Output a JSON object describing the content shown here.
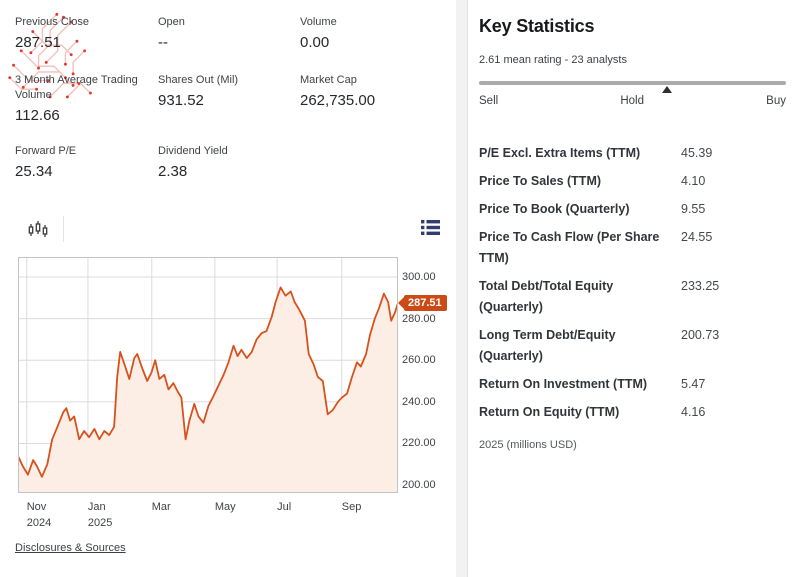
{
  "quote_stats": {
    "items": [
      {
        "label": "Previous Close",
        "value": "287.51"
      },
      {
        "label": "Open",
        "value": "--"
      },
      {
        "label": "Volume",
        "value": "0.00"
      },
      {
        "label": "3 Month Average Trading Volume",
        "value": "112.66"
      },
      {
        "label": "Shares Out (Mil)",
        "value": "931.52"
      },
      {
        "label": "Market Cap",
        "value": "262,735.00"
      },
      {
        "label": "Forward P/E",
        "value": "25.34"
      },
      {
        "label": "Dividend Yield",
        "value": "2.38"
      }
    ]
  },
  "toolbar": {
    "icons": [
      "candlestick-chart-icon",
      "legend-icon"
    ],
    "icon_color_candle": "#3a3a3a",
    "icon_color_legend": "#303d6e"
  },
  "chart_data": {
    "type": "area",
    "title": "Price chart Nov 2024 - Oct 2025",
    "line_color": "#d8501c",
    "fill_color": "#fdeee5",
    "grid_color": "#dcdcdc",
    "border_color": "#c4c4c4",
    "tag_color": "#cc4a15",
    "last_price": 287.51,
    "last_price_label": "287.51",
    "ylim": [
      196.2,
      309.6
    ],
    "y_ticks": [
      {
        "value": 300,
        "label": "300.00"
      },
      {
        "value": 280,
        "label": "280.00"
      },
      {
        "value": 260,
        "label": "260.00"
      },
      {
        "value": 240,
        "label": "240.00"
      },
      {
        "value": 220,
        "label": "220.00"
      },
      {
        "value": 200,
        "label": "200.00"
      }
    ],
    "x_ticks": [
      {
        "f": 0.023,
        "label": "Nov",
        "sub": "2024"
      },
      {
        "f": 0.184,
        "label": "Jan",
        "sub": "2025"
      },
      {
        "f": 0.352,
        "label": "Mar",
        "sub": ""
      },
      {
        "f": 0.518,
        "label": "May",
        "sub": ""
      },
      {
        "f": 0.682,
        "label": "Jul",
        "sub": ""
      },
      {
        "f": 0.852,
        "label": "Sep",
        "sub": ""
      }
    ],
    "points": [
      [
        0.0,
        214
      ],
      [
        0.013,
        209
      ],
      [
        0.026,
        205
      ],
      [
        0.04,
        212
      ],
      [
        0.05,
        209
      ],
      [
        0.063,
        204
      ],
      [
        0.077,
        210
      ],
      [
        0.09,
        222
      ],
      [
        0.106,
        229
      ],
      [
        0.119,
        235
      ],
      [
        0.127,
        237
      ],
      [
        0.137,
        231
      ],
      [
        0.148,
        233
      ],
      [
        0.161,
        222
      ],
      [
        0.174,
        226
      ],
      [
        0.187,
        223
      ],
      [
        0.201,
        227
      ],
      [
        0.214,
        222
      ],
      [
        0.227,
        226
      ],
      [
        0.24,
        224
      ],
      [
        0.253,
        228
      ],
      [
        0.261,
        252
      ],
      [
        0.269,
        264
      ],
      [
        0.282,
        257
      ],
      [
        0.293,
        251
      ],
      [
        0.306,
        261
      ],
      [
        0.314,
        263
      ],
      [
        0.327,
        256
      ],
      [
        0.34,
        250
      ],
      [
        0.351,
        254
      ],
      [
        0.361,
        260
      ],
      [
        0.372,
        251
      ],
      [
        0.385,
        253
      ],
      [
        0.396,
        246
      ],
      [
        0.409,
        249
      ],
      [
        0.42,
        245
      ],
      [
        0.43,
        242
      ],
      [
        0.441,
        222
      ],
      [
        0.451,
        231
      ],
      [
        0.464,
        239
      ],
      [
        0.475,
        233
      ],
      [
        0.488,
        230
      ],
      [
        0.501,
        238
      ],
      [
        0.515,
        243
      ],
      [
        0.528,
        248
      ],
      [
        0.541,
        253
      ],
      [
        0.554,
        259
      ],
      [
        0.567,
        267
      ],
      [
        0.578,
        262
      ],
      [
        0.588,
        265
      ],
      [
        0.602,
        261
      ],
      [
        0.615,
        264
      ],
      [
        0.628,
        270
      ],
      [
        0.641,
        273
      ],
      [
        0.654,
        274
      ],
      [
        0.668,
        281
      ],
      [
        0.678,
        288
      ],
      [
        0.691,
        295
      ],
      [
        0.704,
        291
      ],
      [
        0.718,
        293
      ],
      [
        0.728,
        288
      ],
      [
        0.741,
        284
      ],
      [
        0.755,
        279
      ],
      [
        0.765,
        263
      ],
      [
        0.778,
        258
      ],
      [
        0.789,
        252
      ],
      [
        0.802,
        250
      ],
      [
        0.815,
        234
      ],
      [
        0.828,
        236
      ],
      [
        0.842,
        240
      ],
      [
        0.852,
        242
      ],
      [
        0.866,
        244
      ],
      [
        0.879,
        252
      ],
      [
        0.892,
        259
      ],
      [
        0.902,
        257
      ],
      [
        0.916,
        263
      ],
      [
        0.926,
        272
      ],
      [
        0.939,
        280
      ],
      [
        0.95,
        285
      ],
      [
        0.963,
        292
      ],
      [
        0.974,
        288
      ],
      [
        0.982,
        279
      ],
      [
        0.992,
        283
      ],
      [
        1.0,
        287.5
      ]
    ]
  },
  "footer": {
    "disclosures_link": "Disclosures & Sources"
  },
  "key_statistics": {
    "title": "Key Statistics",
    "rating_text": "2.61 mean rating - 23 analysts",
    "slider": {
      "sell": "Sell",
      "hold": "Hold",
      "buy": "Buy",
      "position_pct": 61.4,
      "mean_rating": 2.61
    },
    "metrics": [
      {
        "label": "P/E Excl. Extra Items (TTM)",
        "value": "45.39"
      },
      {
        "label": "Price To Sales (TTM)",
        "value": "4.10"
      },
      {
        "label": "Price To Book (Quarterly)",
        "value": "9.55"
      },
      {
        "label": "Price To Cash Flow (Per Share TTM)",
        "value": "24.55"
      },
      {
        "label": "Total Debt/Total Equity (Quarterly)",
        "value": "233.25"
      },
      {
        "label": "Long Term Debt/Equity (Quarterly)",
        "value": "200.73"
      },
      {
        "label": "Return On Investment (TTM)",
        "value": "5.47"
      },
      {
        "label": "Return On Equity (TTM)",
        "value": "4.16"
      }
    ],
    "footnote": "2025 (millions USD)"
  }
}
